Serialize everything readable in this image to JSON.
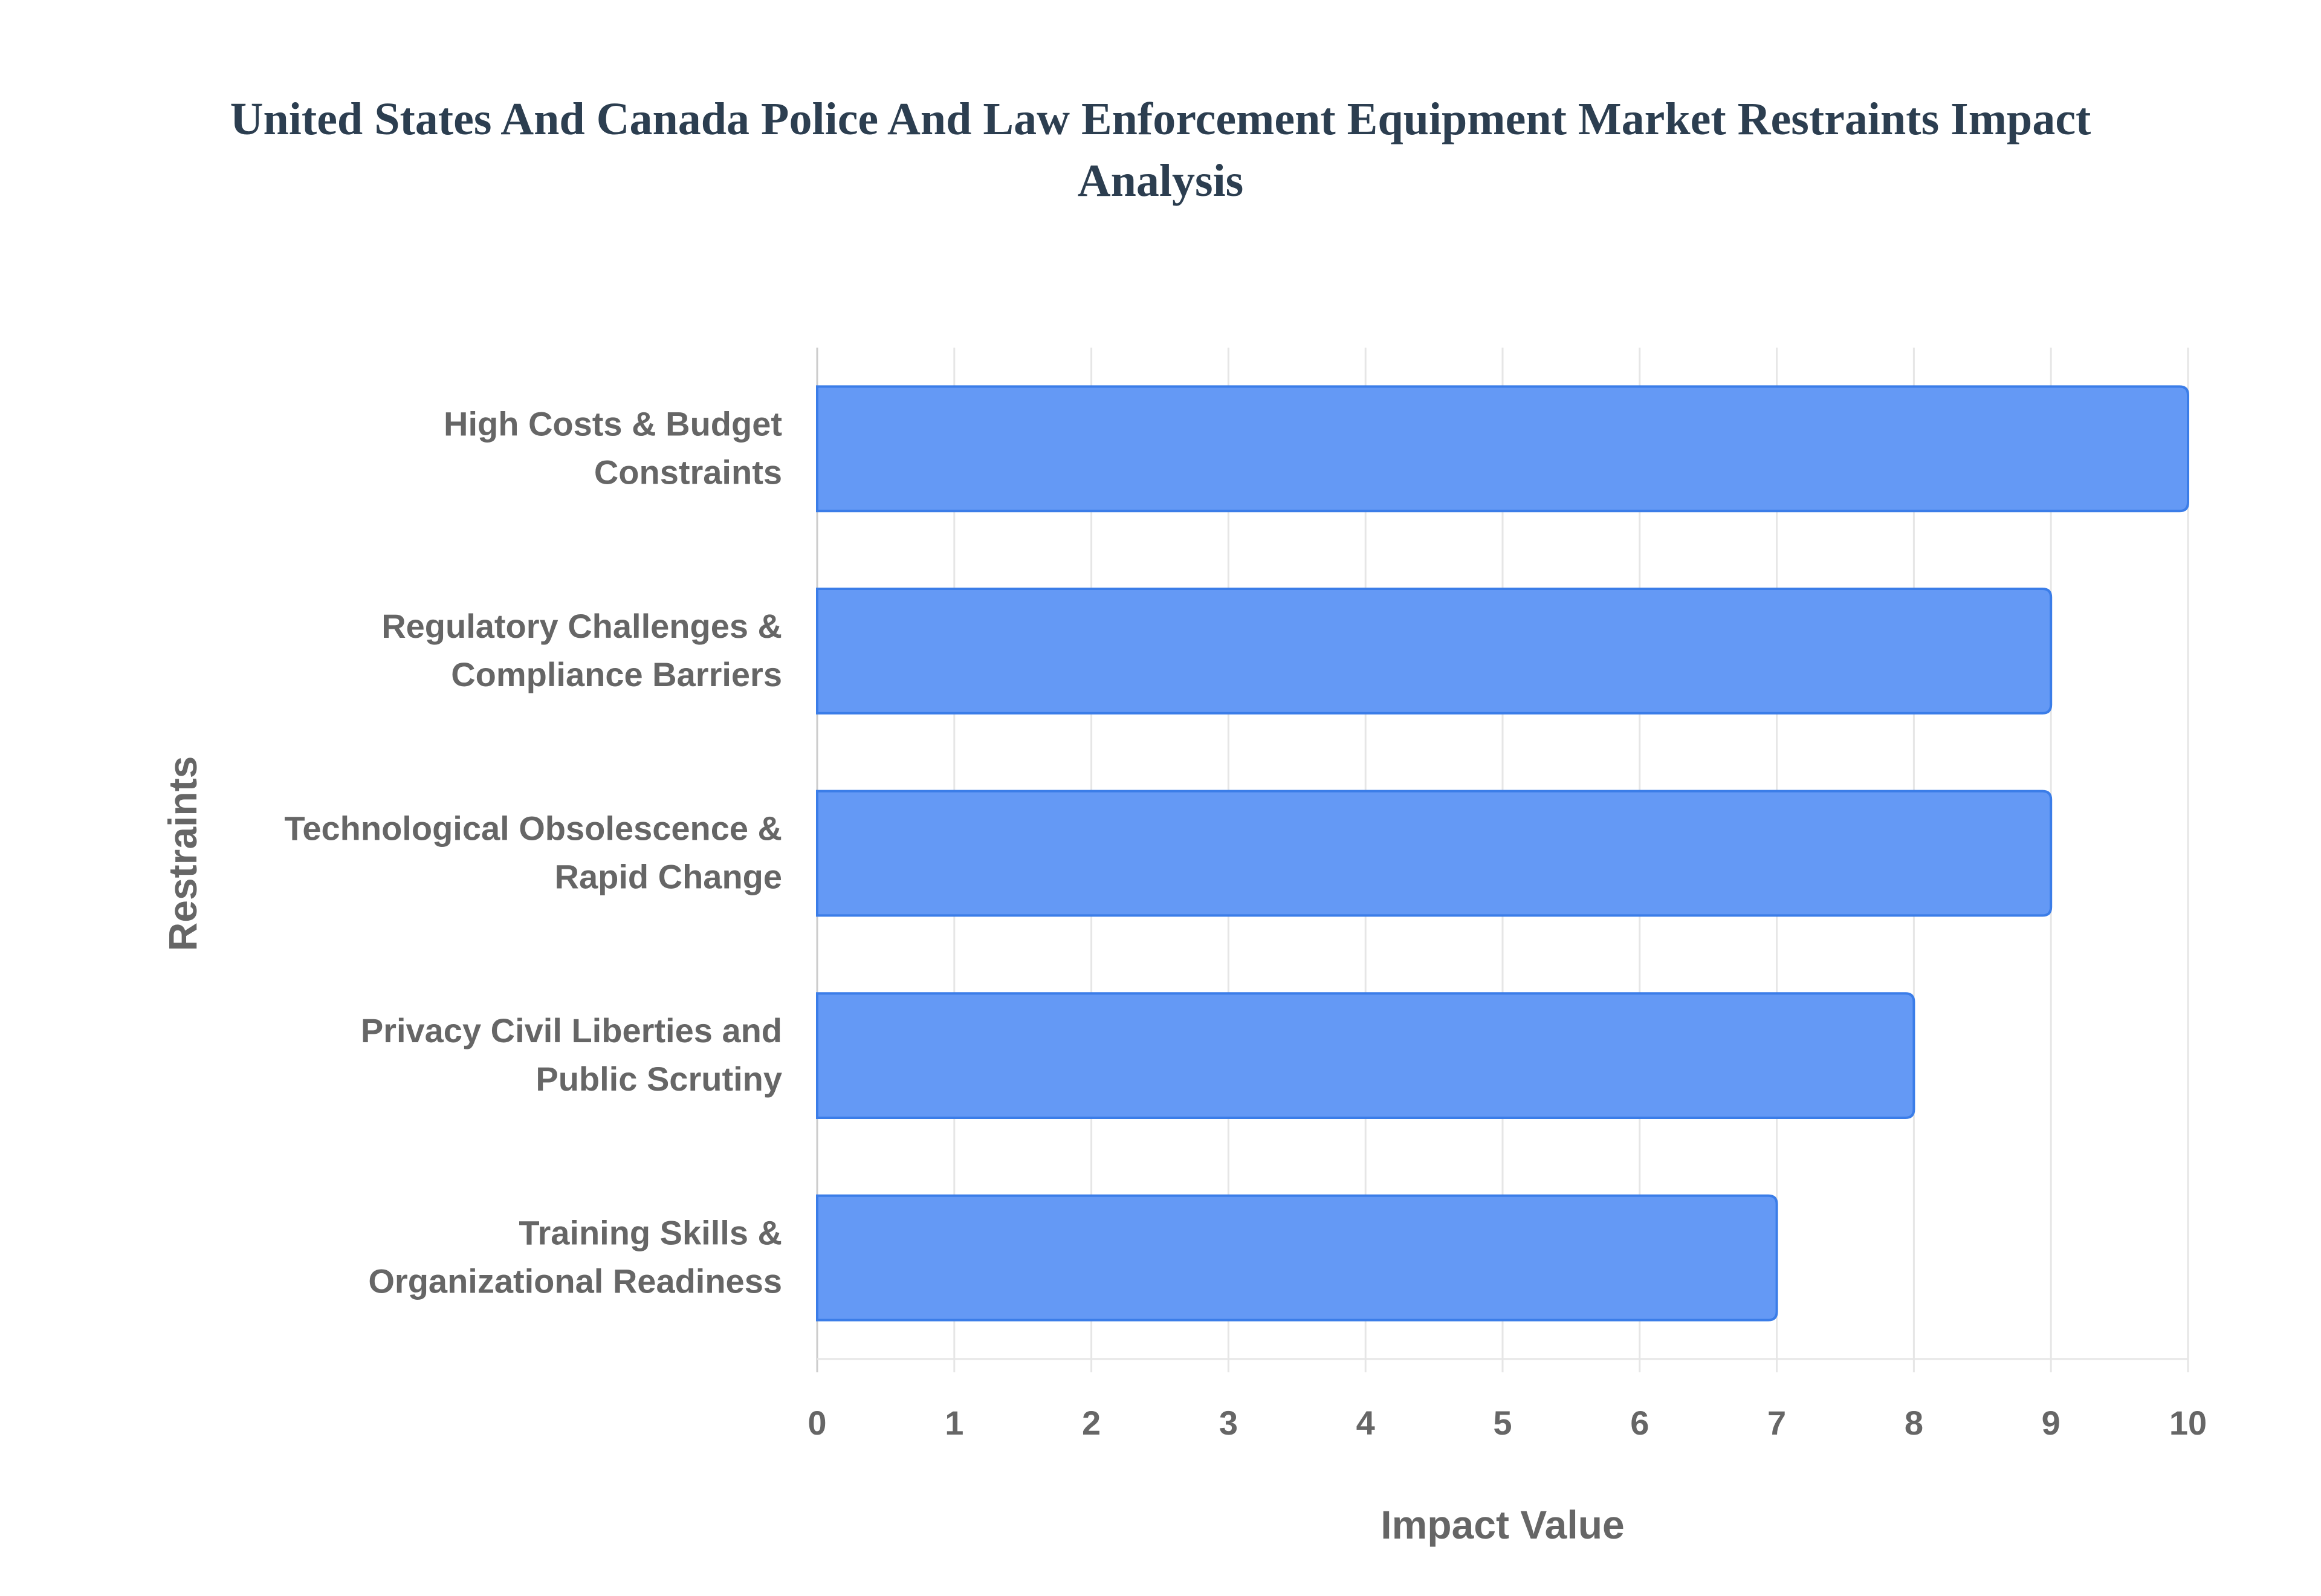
{
  "chart_data": {
    "type": "bar",
    "orientation": "horizontal",
    "title_lines": [
      "United States And Canada Police And Law Enforcement Equipment Market Restraints Impact",
      "Analysis"
    ],
    "categories": [
      [
        "High Costs & Budget",
        "Constraints"
      ],
      [
        "Regulatory Challenges &",
        "Compliance Barriers"
      ],
      [
        "Technological Obsolescence &",
        "Rapid Change"
      ],
      [
        "Privacy Civil Liberties and",
        "Public Scrutiny"
      ],
      [
        "Training Skills &",
        "Organizational Readiness"
      ]
    ],
    "values": [
      10,
      9,
      9,
      8,
      7
    ],
    "xlabel": "Impact Value",
    "ylabel": "Restraints",
    "xlim": [
      0,
      10
    ],
    "xticks": [
      "0",
      "1",
      "2",
      "3",
      "4",
      "5",
      "6",
      "7",
      "8",
      "9",
      "10"
    ],
    "grid": true,
    "bar_color": "#6499f5",
    "bar_border_color": "#3b7de8"
  }
}
